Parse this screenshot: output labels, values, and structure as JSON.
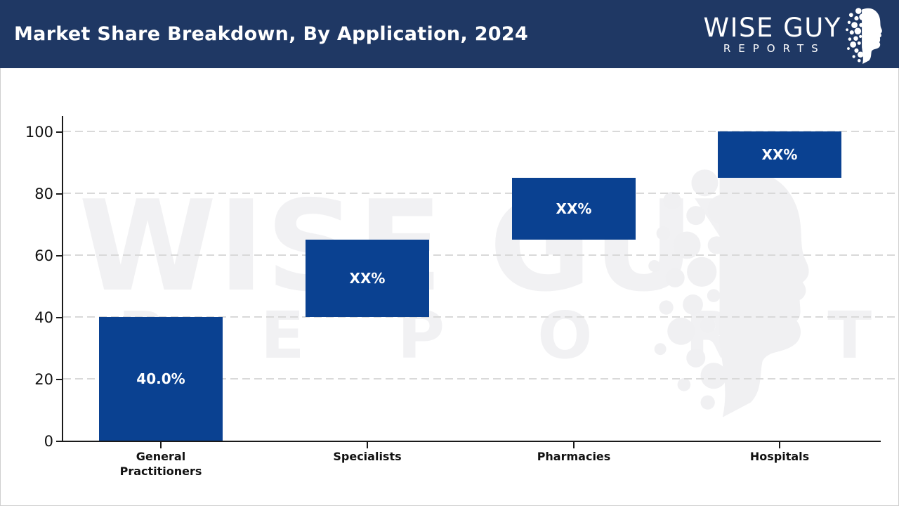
{
  "header": {
    "title": "Market Share Breakdown, By Application, 2024",
    "background_color": "#1f3864",
    "logo": {
      "line1": "WISE GUY",
      "line2": "REPORTS",
      "icon": "dotted-head-profile-icon"
    }
  },
  "watermark": {
    "line1": "WISE GUY",
    "line2": "R E P O R T S"
  },
  "chart_data": {
    "type": "bar",
    "subtype": "floating-segment-bars (stacked market-share breakdown)",
    "title": "Market Share Breakdown, By Application, 2024",
    "categories": [
      "General Practitioners",
      "Specialists",
      "Pharmacies",
      "Hospitals"
    ],
    "segments": [
      {
        "category": "General Practitioners",
        "start": 0,
        "end": 40,
        "value": 40,
        "label": "40.0%"
      },
      {
        "category": "Specialists",
        "start": 40,
        "end": 65,
        "value": 25,
        "label": "XX%"
      },
      {
        "category": "Pharmacies",
        "start": 65,
        "end": 85,
        "value": 20,
        "label": "XX%"
      },
      {
        "category": "Hospitals",
        "start": 85,
        "end": 100,
        "value": 15,
        "label": "XX%"
      }
    ],
    "xlabel": "",
    "ylabel": "",
    "ylim": [
      0,
      105
    ],
    "yticks": [
      0,
      20,
      40,
      60,
      80,
      100
    ],
    "grid": "horizontal dashed, light gray",
    "legend": "none",
    "bar_color": "#0a4191",
    "bar_label_color": "#ffffff",
    "axis_color": "#1a1a1a"
  }
}
